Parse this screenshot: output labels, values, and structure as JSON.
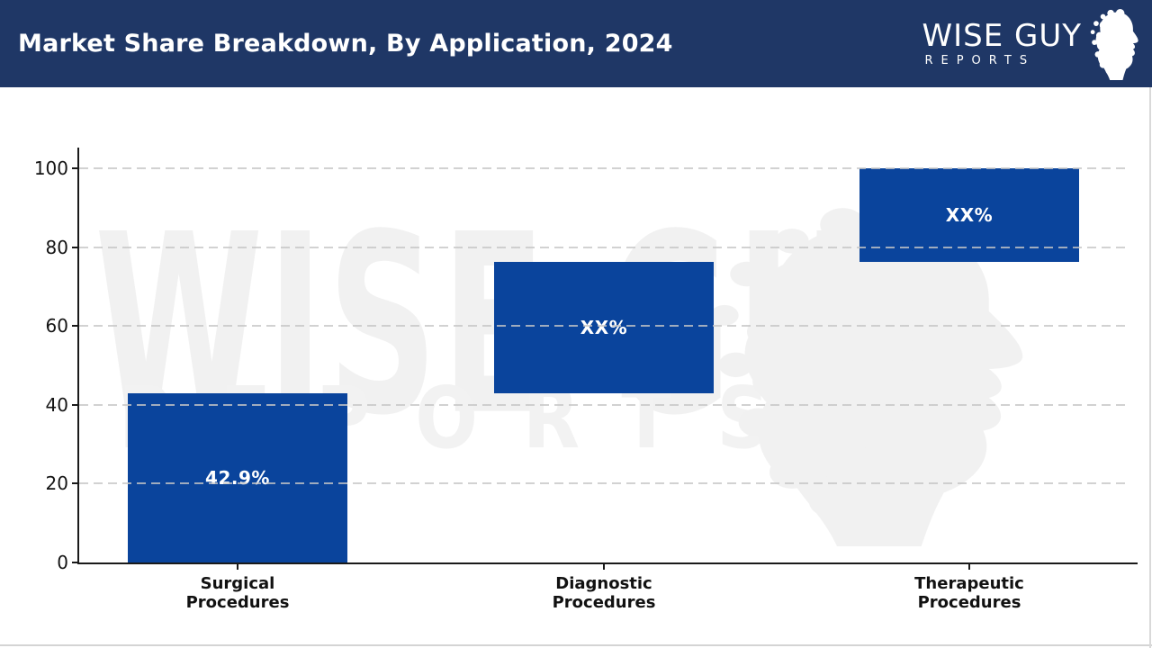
{
  "header": {
    "title": "Market Share Breakdown, By Application, 2024",
    "logo": {
      "brand_line1": "WISE GUY",
      "brand_line2": "REPORTS",
      "icon": "face-profile-dots-icon"
    },
    "bg_color": "#1f3766"
  },
  "watermark": {
    "line1": "WISE GUY",
    "line2": "REPORTS"
  },
  "colors": {
    "header_bg": "#1f3766",
    "bar": "#0a449c",
    "grid": "#d6d6d6",
    "axis": "#1a1a1a",
    "value_label": "#ffffff"
  },
  "chart_data": {
    "type": "bar",
    "variant": "waterfall-stacked-percentage",
    "title": "Market Share Breakdown, By Application, 2024",
    "categories": [
      "Surgical Procedures",
      "Diagnostic Procedures",
      "Therapeutic Procedures"
    ],
    "bars": [
      {
        "category": "Surgical Procedures",
        "start": 0,
        "end": 42.9,
        "value": 42.9,
        "label": "42.9%"
      },
      {
        "category": "Diagnostic Procedures",
        "start": 42.9,
        "end": 76.2,
        "value": 33.3,
        "label": "XX%"
      },
      {
        "category": "Therapeutic Procedures",
        "start": 76.2,
        "end": 100,
        "value": 23.8,
        "label": "XX%"
      }
    ],
    "y_ticks": [
      0,
      20,
      40,
      60,
      80,
      100
    ],
    "ylim": [
      0,
      105
    ],
    "xlabel": "",
    "ylabel": "",
    "grid": "horizontal-dashed",
    "grid_on_top_of_bars": true,
    "legend": "none",
    "bar_color": "#0a449c",
    "value_label_color": "#ffffff"
  }
}
